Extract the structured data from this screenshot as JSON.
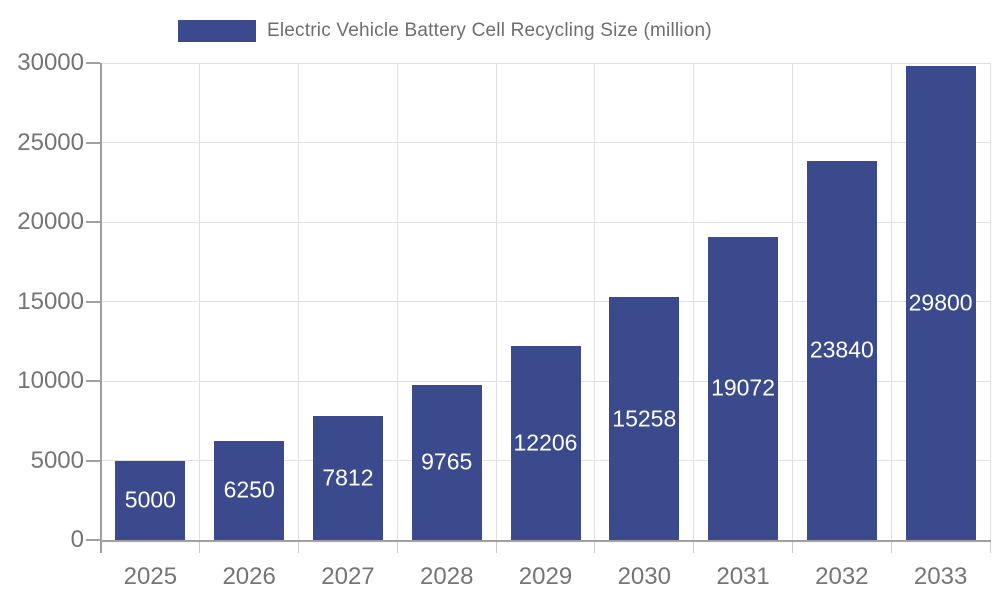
{
  "chart_data": {
    "type": "bar",
    "title": "Electric Vehicle Battery Cell Recycling Size (million)",
    "categories": [
      "2025",
      "2026",
      "2027",
      "2028",
      "2029",
      "2030",
      "2031",
      "2032",
      "2033"
    ],
    "values": [
      5000,
      6250,
      7812,
      9765,
      12206,
      15258,
      19072,
      23840,
      29800
    ],
    "xlabel": "",
    "ylabel": "",
    "ylim": [
      0,
      30000
    ],
    "yticks": [
      0,
      5000,
      10000,
      15000,
      20000,
      25000,
      30000
    ],
    "grid": true,
    "legend_position": "top"
  },
  "legend": {
    "label": "Electric Vehicle Battery Cell Recycling Size (million)",
    "swatch_color": "#3A4A8C"
  },
  "colors": {
    "bar": "#3A4A8C",
    "value_label": "#FFFFFF",
    "axis": "#A0A0A0",
    "grid": "#E0E0E0",
    "x_tick": "#CCCCCC",
    "tick_text": "#757575",
    "legend_text": "#6E6E6E",
    "background": "#FFFFFF"
  }
}
